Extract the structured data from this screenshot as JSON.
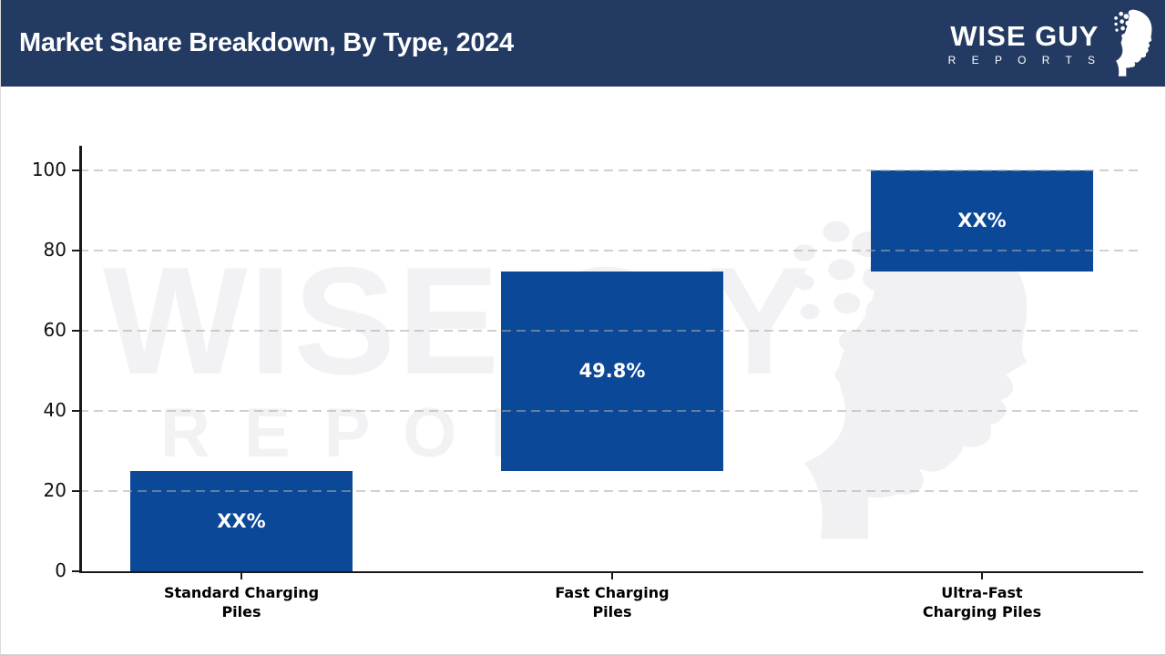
{
  "page": {
    "background": "#FFFFFF",
    "border_color": "#CFCFCF"
  },
  "header": {
    "bg_color": "#233A63",
    "title": "Market Share Breakdown, By Type, 2024",
    "logo": {
      "name": "WISE GUY",
      "sub": "R E P O R T S"
    }
  },
  "watermark": {
    "line1": "WISE G Y",
    "line2": "R E P O R T S",
    "color": "#F2F2F4"
  },
  "chart_data": {
    "type": "bar",
    "subtype": "floating-waterfall-columns",
    "title": "Market Share Breakdown, By Type, 2024",
    "categories": [
      "Standard Charging\nPiles",
      "Fast Charging\nPiles",
      "Ultra-Fast\nCharging Piles"
    ],
    "segments": [
      {
        "category": "Standard Charging Piles",
        "start": 0,
        "end": 25,
        "value_label": "XX%"
      },
      {
        "category": "Fast Charging Piles",
        "start": 25,
        "end": 74.8,
        "value_label": "49.8%"
      },
      {
        "category": "Ultra-Fast Charging Piles",
        "start": 74.8,
        "end": 100,
        "value_label": "XX%"
      }
    ],
    "xlabel": "",
    "ylabel": "",
    "ylim": [
      0,
      100
    ],
    "yticks": [
      0,
      20,
      40,
      60,
      80,
      100
    ],
    "grid": {
      "horizontal": true,
      "style": "dashed",
      "color": "#D9D9D9",
      "drawn_over_bars": true
    },
    "legend": null,
    "bar_color": "#0B4898",
    "bar_label_color": "#FFFFFF",
    "axis_color": "#1A1A1A",
    "tick_label_color": "#111111"
  }
}
